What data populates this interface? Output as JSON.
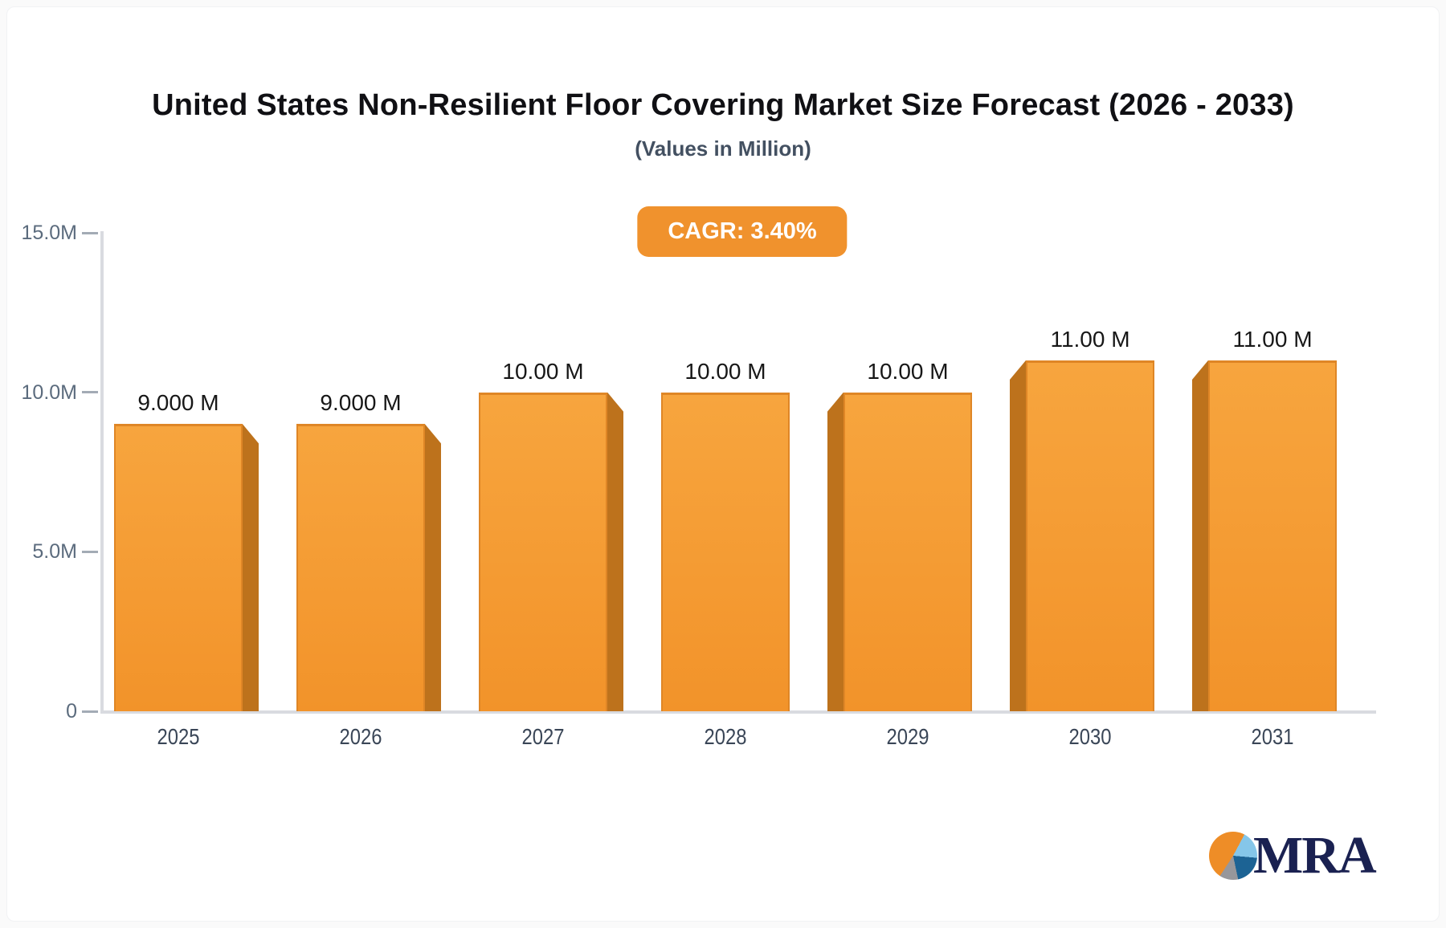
{
  "title": "United States Non-Resilient Floor Covering Market Size Forecast (2026 - 2033)",
  "subtitle": "(Values in Million)",
  "cagr_badge": "CAGR: 3.40%",
  "chart_data": {
    "type": "bar",
    "title": "United States Non-Resilient Floor Covering Market Size Forecast (2026 - 2033)",
    "subtitle": "(Values in Million)",
    "unit": "Million",
    "cagr": "3.40%",
    "categories": [
      "2025",
      "2026",
      "2027",
      "2028",
      "2029",
      "2030",
      "2031"
    ],
    "values": [
      9,
      9,
      10,
      10,
      10,
      11,
      11
    ],
    "bar_labels": [
      "9.000 M",
      "9.000 M",
      "10.00 M",
      "10.00 M",
      "10.00 M",
      "11.00 M",
      "11.00 M"
    ],
    "xlabel": "",
    "ylabel": "",
    "ylim": [
      0,
      15
    ],
    "yticks": [
      {
        "value": 15,
        "label": "15.0M"
      },
      {
        "value": 10,
        "label": "10.0M"
      },
      {
        "value": 5,
        "label": "5.0M"
      },
      {
        "value": 0,
        "label": "0"
      }
    ],
    "grid": false,
    "legend": false,
    "style": "3d-extruded-bars"
  },
  "logo": {
    "text": "MRA"
  },
  "colors": {
    "title": "#101014",
    "subtitle": "#435061",
    "badge_bg": "#f0922d",
    "badge_text": "#ffffff",
    "bar_face_top": "#f7a53e",
    "bar_face_bottom": "#f2932a",
    "bar_edge": "#df8626",
    "bar_side": "#bd721c",
    "axis_line": "#d9dbe0",
    "tick_dash": "#a3abb5",
    "y_label": "#5b6b7d",
    "x_label": "#3a4657",
    "value_label": "#171717",
    "logo_orange": "#ee8d27",
    "logo_lightblue": "#85c6e9",
    "logo_darkblue": "#1c6394",
    "logo_gray": "#97979b",
    "logo_text": "#1a2151"
  }
}
